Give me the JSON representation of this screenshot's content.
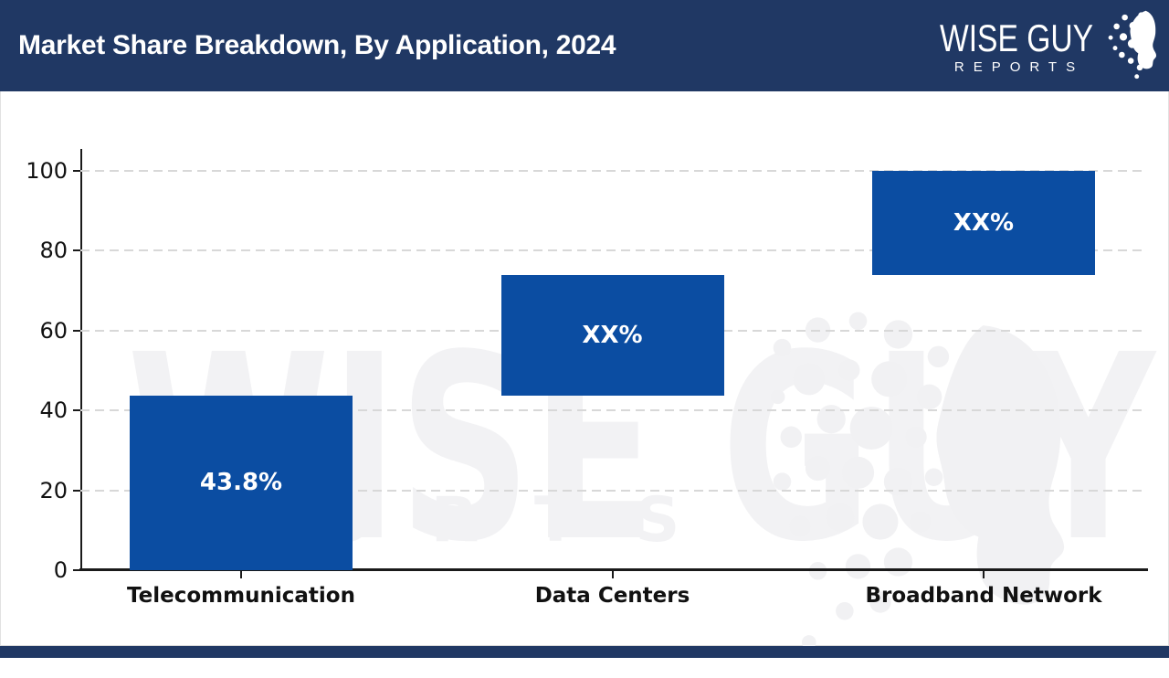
{
  "header": {
    "title": "Market Share Breakdown, By Application, 2024",
    "logo": {
      "line1": "WISE GUY",
      "line2": "REPORTS"
    }
  },
  "watermark": {
    "line1": "WISE GUY",
    "line2": "PORTS"
  },
  "colors": {
    "header_bg": "#203864",
    "bar": "#0b4da2",
    "bar_label": "#ffffff",
    "gridline": "#d8d8d8",
    "axis": "#1a1a1a",
    "watermark": "#f2f2f4"
  },
  "chart_data": {
    "type": "bar",
    "variant": "floating-waterfall-segments",
    "title": "Market Share Breakdown, By Application, 2024",
    "categories": [
      "Telecommunication",
      "Data Centers",
      "Broadband Network"
    ],
    "segments": [
      {
        "category": "Telecommunication",
        "start": 0,
        "end": 43.8,
        "label": "43.8%"
      },
      {
        "category": "Data Centers",
        "start": 43.8,
        "end": 74,
        "label": "XX%"
      },
      {
        "category": "Broadband Network",
        "start": 74,
        "end": 100,
        "label": "XX%"
      }
    ],
    "yticks": [
      "0",
      "20",
      "40",
      "60",
      "80",
      "100"
    ],
    "ytick_values": [
      0,
      20,
      40,
      60,
      80,
      100
    ],
    "ylim": [
      0,
      106
    ],
    "xlabel": "",
    "ylabel": "",
    "grid": "horizontal-dashed",
    "legend": "none"
  }
}
